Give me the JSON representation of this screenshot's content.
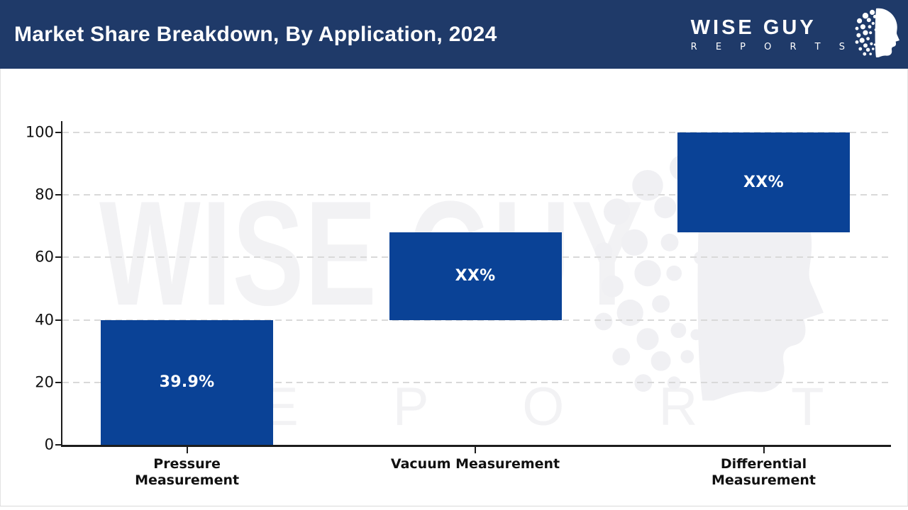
{
  "header": {
    "title": "Market Share Breakdown, By Application, 2024",
    "logo": {
      "line1": "WISE GUY",
      "line2": "R E P O R T S"
    }
  },
  "watermark": {
    "line1": "WISE GUY",
    "line2": "R E P O R T S"
  },
  "chart_data": {
    "type": "bar",
    "variant": "waterfall_breakdown",
    "title": "Market Share Breakdown, By Application, 2024",
    "categories": [
      "Pressure Measurement",
      "Vacuum Measurement",
      "Differential Measurement"
    ],
    "category_label_lines": [
      [
        "Pressure",
        "Measurement"
      ],
      [
        "Vacuum Measurement"
      ],
      [
        "Differential",
        "Measurement"
      ]
    ],
    "segments": [
      {
        "category": "Pressure Measurement",
        "start": 0,
        "end": 40,
        "label": "39.9%"
      },
      {
        "category": "Vacuum Measurement",
        "start": 40,
        "end": 68,
        "label": "XX%"
      },
      {
        "category": "Differential Measurement",
        "start": 68,
        "end": 100,
        "label": "XX%"
      }
    ],
    "ylim": [
      0,
      100
    ],
    "yticks": [
      0,
      20,
      40,
      60,
      80,
      100
    ],
    "xlabel": "",
    "ylabel": "",
    "grid": {
      "horizontal": true,
      "style": "dashed"
    },
    "legend": null,
    "colors": {
      "bar": "#0a4296",
      "bar_label": "#ffffff",
      "axis": "#1c1c1c",
      "grid": "#d9d9d9",
      "tick_text": "#111111"
    }
  },
  "colors": {
    "header_bg": "#1f3a69",
    "page_bg": "#ffffff",
    "watermark": "#f2f2f4"
  }
}
